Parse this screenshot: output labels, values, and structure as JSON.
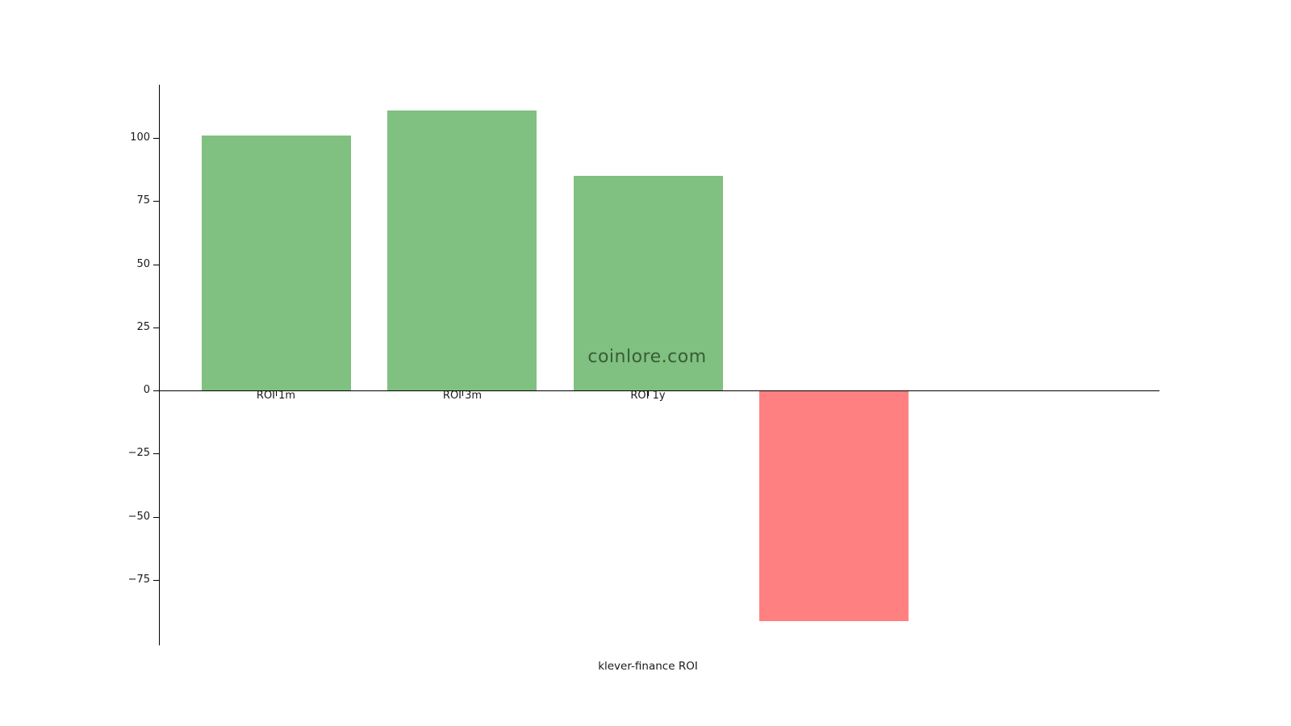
{
  "page": {
    "background_color": "#ffffff"
  },
  "chart_data": {
    "type": "bar",
    "title": "klever-finance ROI",
    "xlabel": "klever-finance ROI",
    "ylabel": "",
    "watermark": "coinlore.com",
    "categories": [
      "ROI 1m",
      "ROI 3m",
      "ROI 1y",
      ""
    ],
    "values": [
      101,
      111,
      85,
      -91
    ],
    "bar_colors": [
      "#80c080",
      "#80c080",
      "#80c080",
      "#ff8080"
    ],
    "positive_color": "#80c080",
    "negative_color": "#ff8080",
    "yticks": [
      100,
      75,
      50,
      25,
      0,
      -25,
      -50,
      -75
    ],
    "ylim": [
      -101.5,
      121.5
    ],
    "grid": false,
    "legend_position": "none",
    "axis_color": "#000000",
    "tick_label_color": "#1a1a1a"
  }
}
